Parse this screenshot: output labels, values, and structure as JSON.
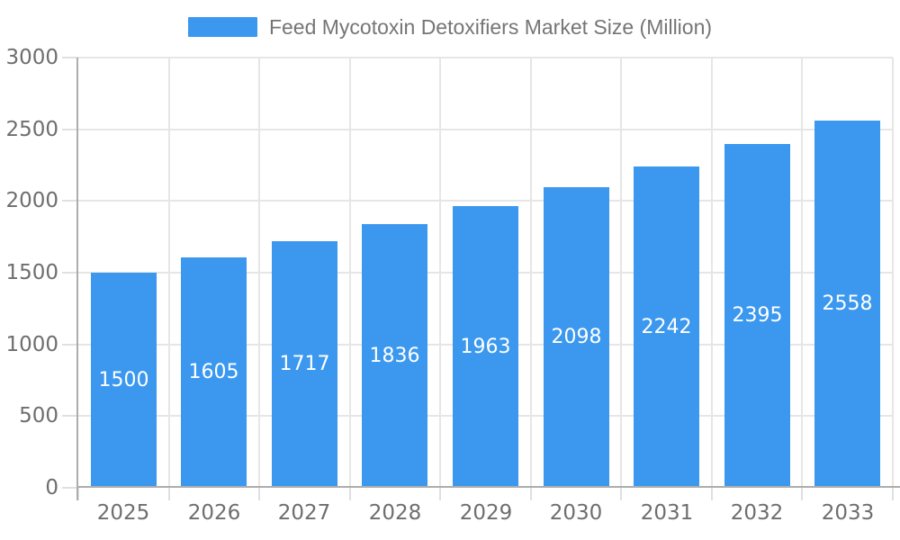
{
  "legend": {
    "label": "Feed Mycotoxin Detoxifiers Market Size (Million)"
  },
  "colors": {
    "bar": "#3B98EE",
    "axis_line": "#ADADAD",
    "grid": "#E6E6E6",
    "tick": "#E0E0E0",
    "axis_text": "#6E6E6E",
    "legend_text": "#757575",
    "value_text": "#FFFFFF",
    "background": "#FFFFFF"
  },
  "chart_data": {
    "type": "bar",
    "title": "Feed Mycotoxin Detoxifiers Market Size (Million)",
    "categories": [
      "2025",
      "2026",
      "2027",
      "2028",
      "2029",
      "2030",
      "2031",
      "2032",
      "2033"
    ],
    "values": [
      1500,
      1605,
      1717,
      1836,
      1963,
      2098,
      2242,
      2395,
      2558
    ],
    "xlabel": "",
    "ylabel": "",
    "ylim": [
      0,
      3000
    ],
    "yticks": [
      0,
      500,
      1000,
      1500,
      2000,
      2500,
      3000
    ],
    "grid": true,
    "legend_position": "top",
    "value_label_position": "inside-center"
  }
}
